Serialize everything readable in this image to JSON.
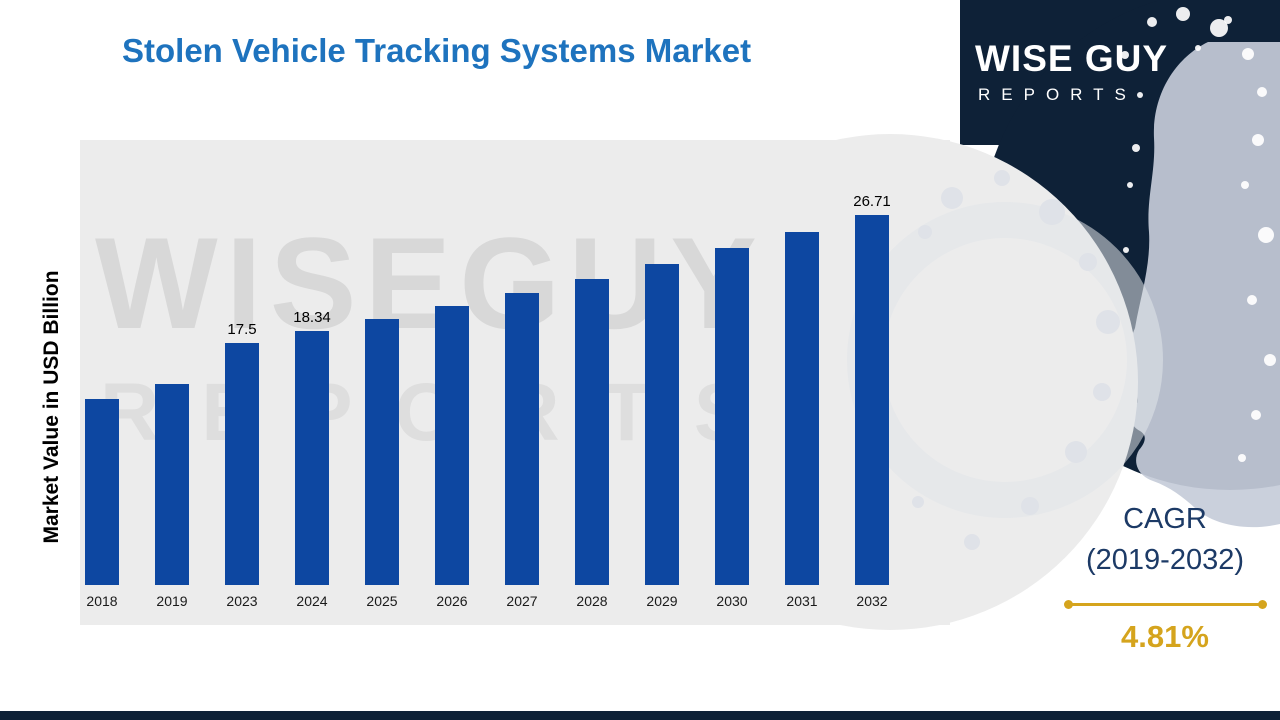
{
  "header": {
    "title": "Stolen Vehicle Tracking Systems Market"
  },
  "logo": {
    "title": "WISE GUY",
    "subtitle": "REPORTS"
  },
  "watermark": {
    "line1": "WISEGUY",
    "line2": "REPORTS"
  },
  "chart_data": {
    "type": "bar",
    "title": "Stolen Vehicle Tracking Systems Market",
    "xlabel": "",
    "ylabel": "Market Value in USD Billion",
    "categories": [
      "2018",
      "2019",
      "2023",
      "2024",
      "2025",
      "2026",
      "2027",
      "2028",
      "2029",
      "2030",
      "2031",
      "2032"
    ],
    "values": [
      13.4,
      14.5,
      17.5,
      18.34,
      19.2,
      20.15,
      21.1,
      22.1,
      23.2,
      24.3,
      25.5,
      26.71
    ],
    "bar_labels": [
      "",
      "",
      "17.5",
      "18.34",
      "",
      "",
      "",
      "",
      "",
      "",
      "",
      "26.71"
    ],
    "ylim": [
      0,
      30
    ],
    "grid": false,
    "legend": "none",
    "bar_color": "#0d47a1",
    "plot_background": "#ececec"
  },
  "cagr": {
    "line1": "CAGR",
    "line2": "(2019-2032)",
    "value": "4.81%"
  },
  "colors": {
    "navy": "#0e2137",
    "gold": "#d5a41d",
    "title_blue": "#1e73be",
    "cagr_text": "#1c3a66",
    "watermark_gray": "#d8d8d8"
  }
}
